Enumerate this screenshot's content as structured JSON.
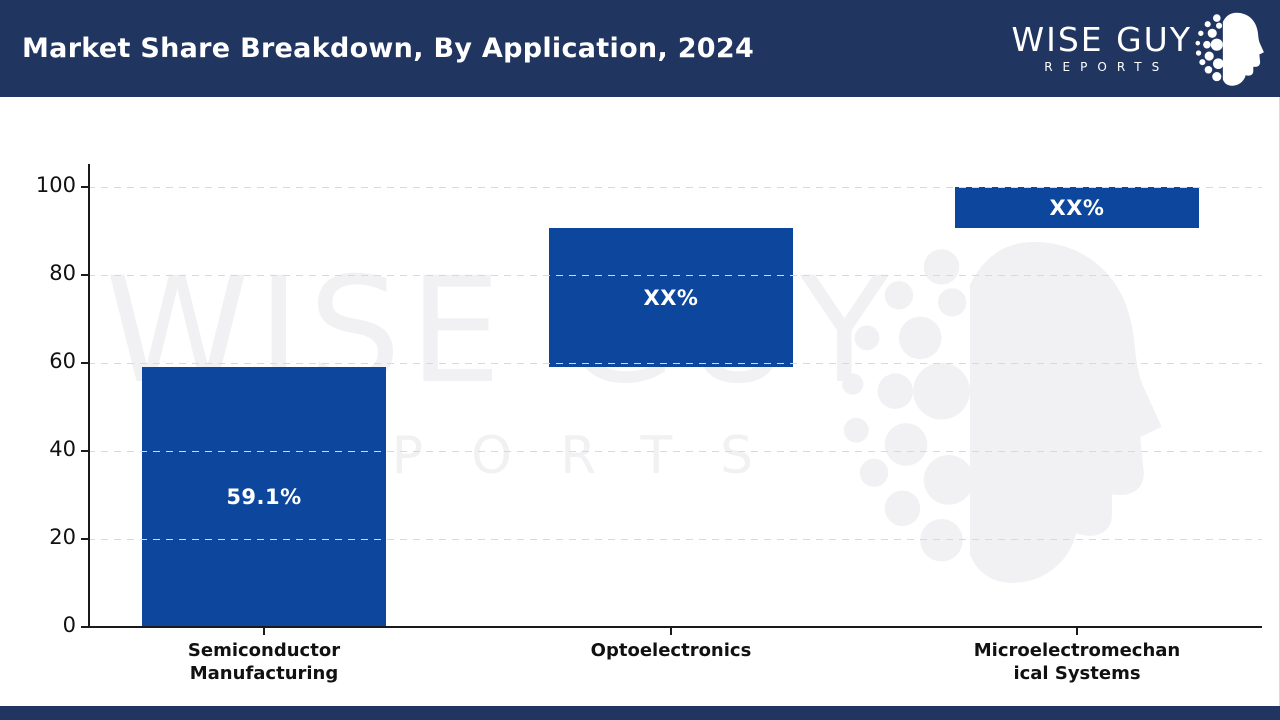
{
  "header": {
    "title": "Market Share Breakdown, By Application, 2024",
    "bg_color": "#213561",
    "logo": {
      "line1": "WISE GUY",
      "line2": "REPORTS"
    }
  },
  "watermark": {
    "line1": "WISE GUY",
    "line2": "REPORTS",
    "color": "#f1f1f3"
  },
  "footer": {
    "bg_color": "#213561"
  },
  "chart_data": {
    "type": "bar",
    "subtype": "stacked-waterfall-breakdown",
    "title": "Market Share Breakdown, By Application, 2024",
    "categories": [
      "Semiconductor Manufacturing",
      "Optoelectronics",
      "Microelectromechanical Systems"
    ],
    "categories_display": [
      [
        "Semiconductor",
        "Manufacturing"
      ],
      [
        "Optoelectronics"
      ],
      [
        "Microelectromechan",
        "ical Systems"
      ]
    ],
    "segments": [
      {
        "category": "Semiconductor Manufacturing",
        "start": 0,
        "end": 59.1,
        "label": "59.1%",
        "value_pct": 59.1
      },
      {
        "category": "Optoelectronics",
        "start": 59.1,
        "end": 90.6,
        "label": "XX%",
        "value_pct_estimated": 31.5
      },
      {
        "category": "Microelectromechanical Systems",
        "start": 90.6,
        "end": 100,
        "label": "XX%",
        "value_pct_estimated": 9.4
      }
    ],
    "ylim": [
      0,
      100
    ],
    "yticks": [
      0,
      20,
      40,
      60,
      80,
      100
    ],
    "grid": "horizontal dashed, drawn above bars",
    "legend": "none",
    "bar_color": "#0c479d",
    "label_color": "#ffffff",
    "axis_color": "#1a1a1a",
    "gridline_color": "#d9d9d9"
  }
}
